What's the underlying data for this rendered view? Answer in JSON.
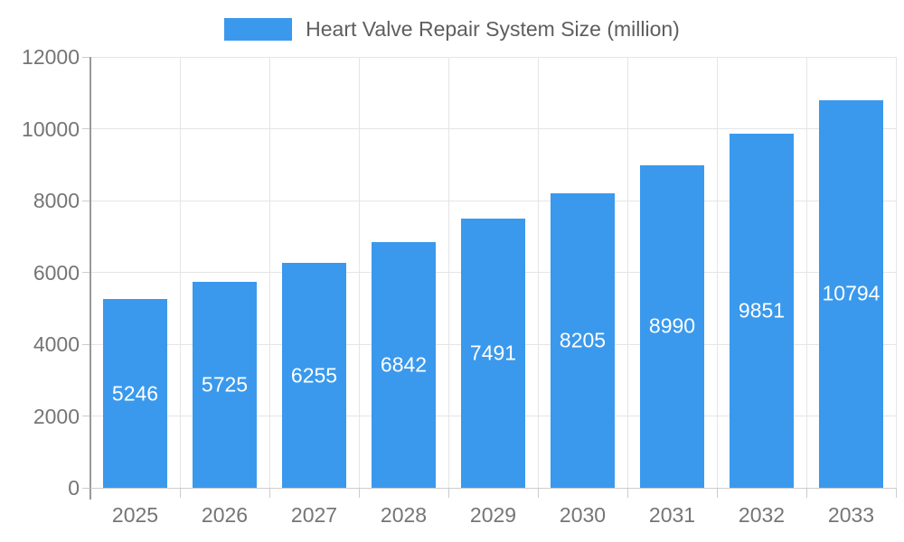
{
  "chart_data": {
    "type": "bar",
    "title": "Heart Valve Repair System Size (million)",
    "categories": [
      "2025",
      "2026",
      "2027",
      "2028",
      "2029",
      "2030",
      "2031",
      "2032",
      "2033"
    ],
    "values": [
      5246,
      5725,
      6255,
      6842,
      7491,
      8205,
      8990,
      9851,
      10794
    ],
    "xlabel": "",
    "ylabel": "",
    "ylim": [
      0,
      12000
    ],
    "yticks": [
      0,
      2000,
      4000,
      6000,
      8000,
      10000,
      12000
    ],
    "grid": true,
    "bar_labels_inside": true,
    "legend": {
      "label": "Heart Valve Repair System Size (million)",
      "position": "top-center"
    },
    "colors": {
      "bar": "#3A99EC",
      "bar_label": "#FFFFFF",
      "grid_line": "#E5E5E5",
      "y_axis_line": "#999999",
      "x_axis_line": "#CCCCCC",
      "tick": "#CCCCCC",
      "axis_text": "#757575",
      "legend_text": "#5E5E5E",
      "background": "#FFFFFF"
    }
  }
}
